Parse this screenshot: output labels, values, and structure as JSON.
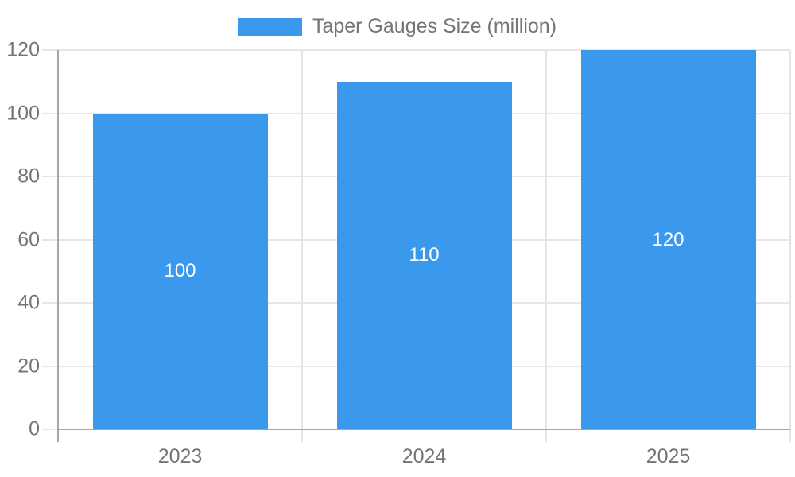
{
  "chart_data": {
    "type": "bar",
    "title": "",
    "legend": "Taper Gauges Size (million)",
    "legend_position": "top-center",
    "categories": [
      "2023",
      "2024",
      "2025"
    ],
    "series": [
      {
        "name": "Taper Gauges Size (million)",
        "values": [
          100,
          110,
          120
        ]
      }
    ],
    "bar_value_labels": [
      "100",
      "110",
      "120"
    ],
    "xlabel": "",
    "ylabel": "",
    "ylim": [
      0,
      120
    ],
    "yticks": [
      0,
      20,
      40,
      60,
      80,
      100,
      120
    ],
    "grid": true,
    "colors": {
      "bar": "#3a99ec",
      "axis_text": "#757575",
      "bar_value_text": "#ffffff",
      "gridline": "#e6e6e6",
      "axis_line": "#a6a6a6",
      "background": "#ffffff"
    }
  }
}
